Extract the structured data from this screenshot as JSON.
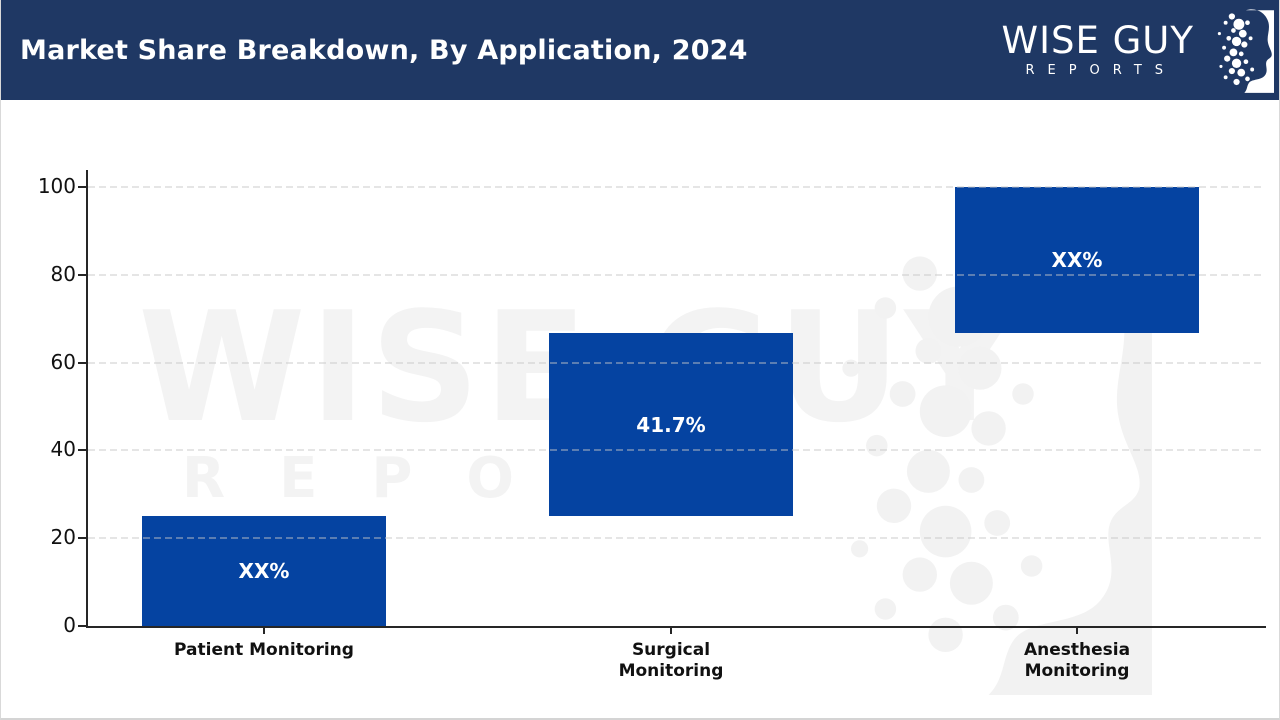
{
  "header": {
    "title": "Market Share Breakdown, By Application, 2024",
    "bg_color": "#1f3864",
    "logo": {
      "line1": "WISE GUY",
      "line2": "REPORTS"
    }
  },
  "watermark": {
    "line1": "WISE GUY",
    "line2": "REPORTS"
  },
  "chart_data": {
    "type": "bar",
    "subtype": "waterfall",
    "title": "Market Share Breakdown, By Application, 2024",
    "categories": [
      "Patient Monitoring",
      "Surgical Monitoring",
      "Anesthesia Monitoring"
    ],
    "category_lines": [
      [
        "Patient Monitoring"
      ],
      [
        "Surgical",
        "Monitoring"
      ],
      [
        "Anesthesia",
        "Monitoring"
      ]
    ],
    "segments": [
      {
        "category": "Patient Monitoring",
        "start": 0,
        "end": 25,
        "label": "XX%"
      },
      {
        "category": "Surgical Monitoring",
        "start": 25,
        "end": 66.7,
        "label": "41.7%"
      },
      {
        "category": "Anesthesia Monitoring",
        "start": 66.7,
        "end": 100,
        "label": "XX%"
      }
    ],
    "yticks": [
      0,
      20,
      40,
      60,
      80,
      100
    ],
    "ylim": [
      0,
      104
    ],
    "xlabel": "",
    "ylabel": "",
    "legend": "none",
    "grid": "horizontal-dashed",
    "bar_color": "#0543a1",
    "grid_color": "#e8e8e8",
    "axis_color": "#262626"
  }
}
